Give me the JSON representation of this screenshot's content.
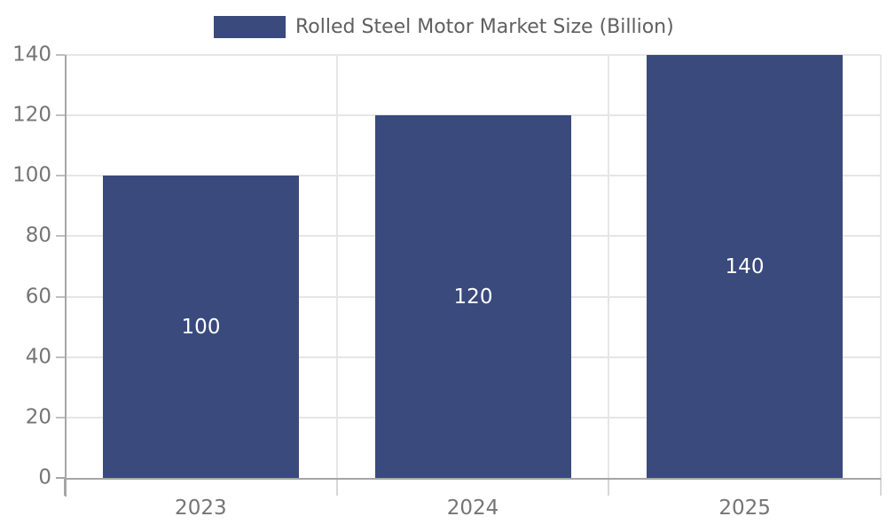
{
  "legend": {
    "label": "Rolled Steel Motor Market Size (Billion)"
  },
  "chart_data": {
    "type": "bar",
    "title": "",
    "series_name": "Rolled Steel Motor Market Size (Billion)",
    "categories": [
      "2023",
      "2024",
      "2025"
    ],
    "values": [
      100,
      120,
      140
    ],
    "data_labels": [
      "100",
      "120",
      "140"
    ],
    "xlabel": "",
    "ylabel": "",
    "ylim": [
      0,
      140
    ],
    "yticks": [
      0,
      20,
      40,
      60,
      80,
      100,
      120,
      140
    ],
    "ytick_labels": [
      "0",
      "20",
      "40",
      "60",
      "80",
      "100",
      "120",
      "140"
    ],
    "grid": true,
    "legend_position": "top-center",
    "colors": {
      "bar": "#3a4a7d",
      "bar_label": "#ffffff",
      "gridline": "#e6e6e6",
      "boundary_tick": "#d7d7d7",
      "ytick_mark": "#c0c0c0",
      "axis_line": "#a6a6a6",
      "tick_label": "#757575",
      "legend_text": "#5f5f5f"
    }
  }
}
